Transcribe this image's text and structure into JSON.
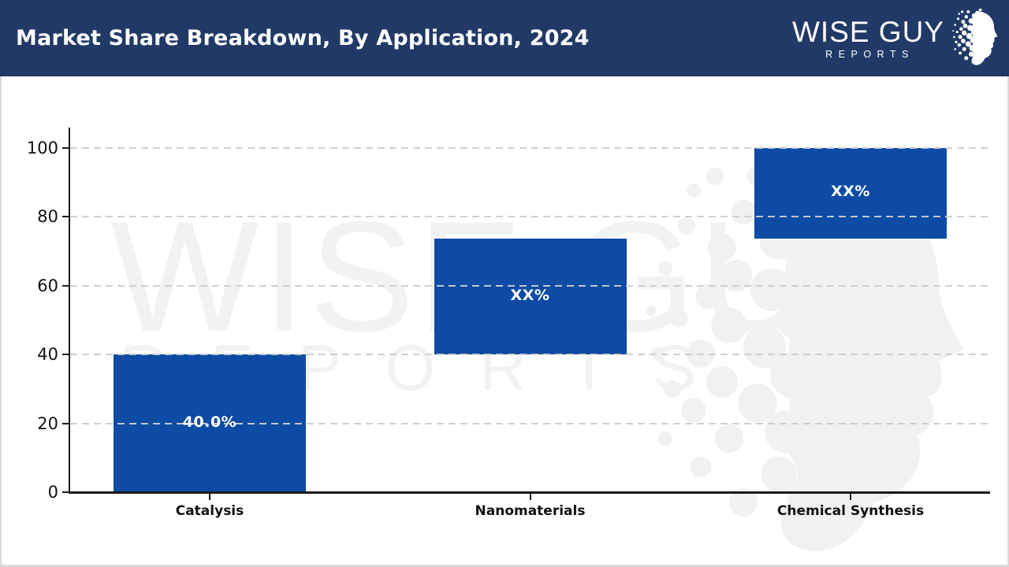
{
  "header": {
    "title": "Market Share Breakdown, By Application, 2024",
    "logo": {
      "line1": "WISE GUY",
      "line2": "REPORTS"
    }
  },
  "watermark": {
    "line1": "WISE GUY",
    "line2": "REPORTS"
  },
  "chart_data": {
    "type": "bar",
    "subtype": "waterfall",
    "title": "Market Share Breakdown, By Application, 2024",
    "categories": [
      "Catalysis",
      "Nanomaterials",
      "Chemical Synthesis"
    ],
    "segments": [
      {
        "category": "Catalysis",
        "start": 0,
        "end": 40,
        "label": "40.0%"
      },
      {
        "category": "Nanomaterials",
        "start": 40,
        "end": 73.5,
        "label": "XX%"
      },
      {
        "category": "Chemical Synthesis",
        "start": 73.5,
        "end": 100,
        "label": "XX%"
      }
    ],
    "yticks": [
      0,
      20,
      40,
      60,
      80,
      100
    ],
    "ylim": [
      0,
      106
    ],
    "xlabel": "",
    "ylabel": "",
    "grid": "horizontal-dashed",
    "legend": "none"
  },
  "colors": {
    "header_bg": "#213966",
    "bar": "#0d4ba4",
    "axis": "#1a1a1a",
    "grid": "#cdcdcd",
    "watermark": "#f2f2f2",
    "border": "#d9d9d9",
    "bar_label": "#ffffff"
  }
}
